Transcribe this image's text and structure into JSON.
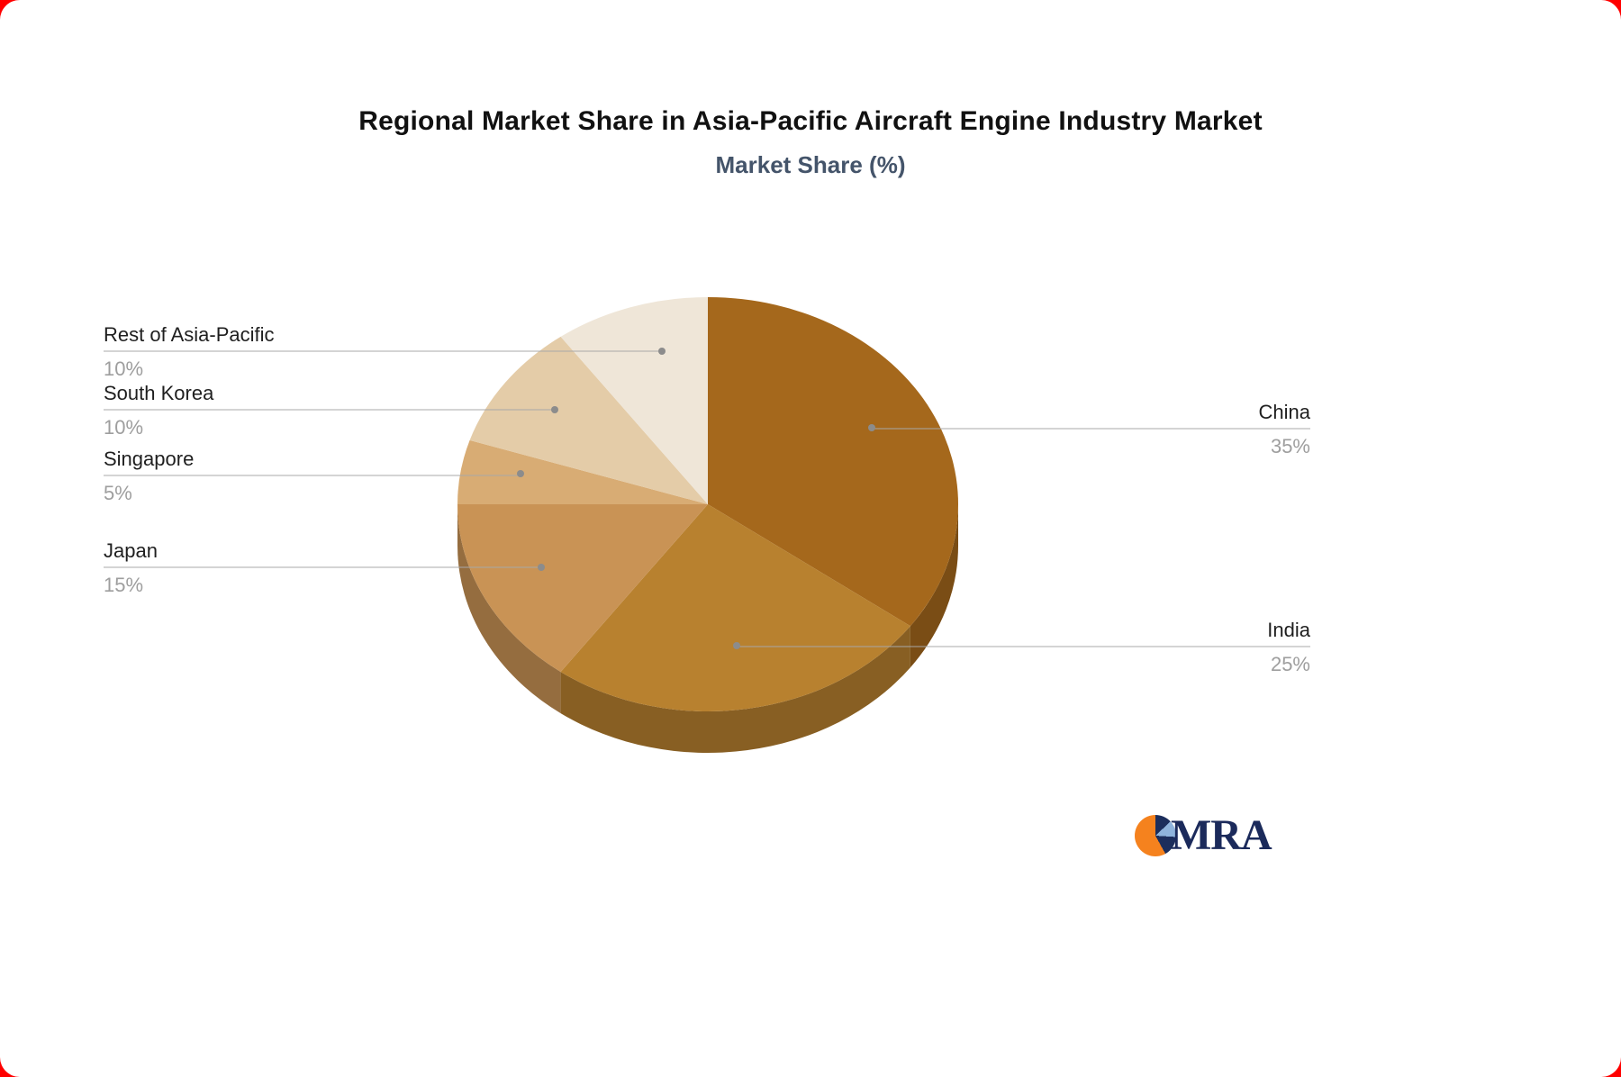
{
  "chart_data": {
    "type": "pie",
    "style": "3d",
    "title": "Regional Market Share in Asia-Pacific Aircraft Engine Industry Market",
    "subtitle": "Market Share (%)",
    "unit": "%",
    "start_angle_deg": 0,
    "direction": "clockwise",
    "labels": [
      "China",
      "India",
      "Japan",
      "Singapore",
      "South Korea",
      "Rest of Asia-Pacific"
    ],
    "values": [
      35,
      25,
      15,
      5,
      10,
      10
    ],
    "colors": [
      "#A5681C",
      "#B8812F",
      "#C99355",
      "#D8AC74",
      "#E4CCA8",
      "#EFE6D8"
    ],
    "leader_line_color": "#a8a8a8",
    "label_text_color": "#1f1f1f",
    "percent_text_color": "#9e9e9e"
  },
  "logo": {
    "text": "MRA",
    "colors": {
      "orange": "#F5821E",
      "navy": "#1C2E5C",
      "lightblue": "#8FB4DC"
    }
  }
}
